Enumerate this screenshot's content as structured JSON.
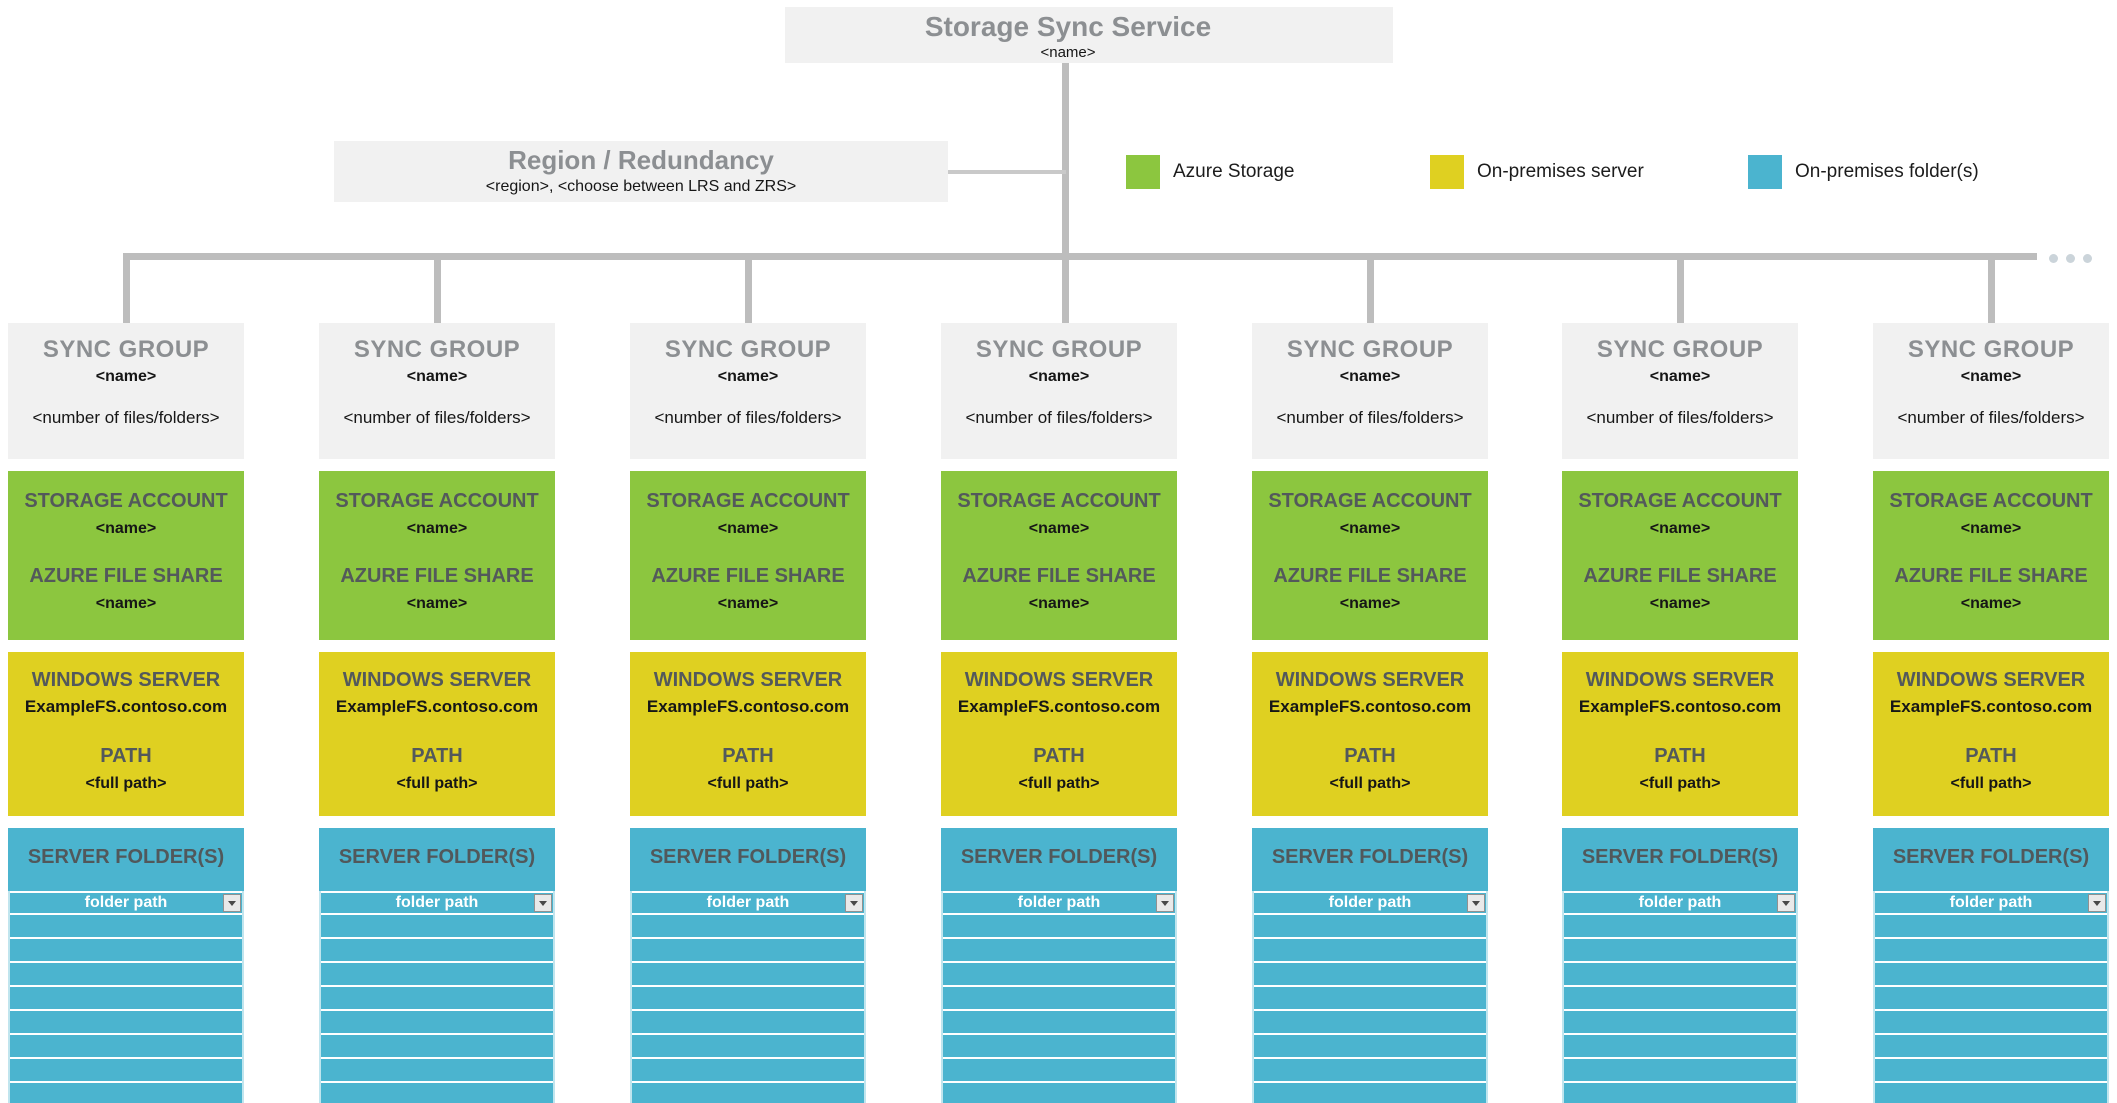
{
  "header": {
    "title": "Storage Sync Service",
    "name_placeholder": "<name>"
  },
  "region": {
    "title": "Region / Redundancy",
    "subtitle": "<region>, <choose between LRS and ZRS>"
  },
  "legend": {
    "items": [
      {
        "label": "Azure Storage",
        "color": "#8CC63F"
      },
      {
        "label": "On-premises server",
        "color": "#DFD021"
      },
      {
        "label": "On-premises folder(s)",
        "color": "#4BB4CF"
      }
    ]
  },
  "more_indicator": {
    "dots": 3
  },
  "columns": [
    {
      "sync_group": {
        "title": "SYNC GROUP",
        "name": "<name>",
        "count": "<number of files/folders>"
      },
      "storage": {
        "account_label": "STORAGE ACCOUNT",
        "account_name": "<name>",
        "share_label": "AZURE FILE SHARE",
        "share_name": "<name>"
      },
      "server": {
        "label": "WINDOWS SERVER",
        "host": "ExampleFS.contoso.com",
        "path_label": "PATH",
        "path_value": "<full path>"
      },
      "folders": {
        "label": "SERVER FOLDER(S)",
        "selected_value": "folder path",
        "empty_rows": 8
      }
    },
    {
      "sync_group": {
        "title": "SYNC GROUP",
        "name": "<name>",
        "count": "<number of files/folders>"
      },
      "storage": {
        "account_label": "STORAGE ACCOUNT",
        "account_name": "<name>",
        "share_label": "AZURE FILE SHARE",
        "share_name": "<name>"
      },
      "server": {
        "label": "WINDOWS SERVER",
        "host": "ExampleFS.contoso.com",
        "path_label": "PATH",
        "path_value": "<full path>"
      },
      "folders": {
        "label": "SERVER FOLDER(S)",
        "selected_value": "folder path",
        "empty_rows": 8
      }
    },
    {
      "sync_group": {
        "title": "SYNC GROUP",
        "name": "<name>",
        "count": "<number of files/folders>"
      },
      "storage": {
        "account_label": "STORAGE ACCOUNT",
        "account_name": "<name>",
        "share_label": "AZURE FILE SHARE",
        "share_name": "<name>"
      },
      "server": {
        "label": "WINDOWS SERVER",
        "host": "ExampleFS.contoso.com",
        "path_label": "PATH",
        "path_value": "<full path>"
      },
      "folders": {
        "label": "SERVER FOLDER(S)",
        "selected_value": "folder path",
        "empty_rows": 8
      }
    },
    {
      "sync_group": {
        "title": "SYNC GROUP",
        "name": "<name>",
        "count": "<number of files/folders>"
      },
      "storage": {
        "account_label": "STORAGE ACCOUNT",
        "account_name": "<name>",
        "share_label": "AZURE FILE SHARE",
        "share_name": "<name>"
      },
      "server": {
        "label": "WINDOWS SERVER",
        "host": "ExampleFS.contoso.com",
        "path_label": "PATH",
        "path_value": "<full path>"
      },
      "folders": {
        "label": "SERVER FOLDER(S)",
        "selected_value": "folder path",
        "empty_rows": 8
      }
    },
    {
      "sync_group": {
        "title": "SYNC GROUP",
        "name": "<name>",
        "count": "<number of files/folders>"
      },
      "storage": {
        "account_label": "STORAGE ACCOUNT",
        "account_name": "<name>",
        "share_label": "AZURE FILE SHARE",
        "share_name": "<name>"
      },
      "server": {
        "label": "WINDOWS SERVER",
        "host": "ExampleFS.contoso.com",
        "path_label": "PATH",
        "path_value": "<full path>"
      },
      "folders": {
        "label": "SERVER FOLDER(S)",
        "selected_value": "folder path",
        "empty_rows": 8
      }
    },
    {
      "sync_group": {
        "title": "SYNC GROUP",
        "name": "<name>",
        "count": "<number of files/folders>"
      },
      "storage": {
        "account_label": "STORAGE ACCOUNT",
        "account_name": "<name>",
        "share_label": "AZURE FILE SHARE",
        "share_name": "<name>"
      },
      "server": {
        "label": "WINDOWS SERVER",
        "host": "ExampleFS.contoso.com",
        "path_label": "PATH",
        "path_value": "<full path>"
      },
      "folders": {
        "label": "SERVER FOLDER(S)",
        "selected_value": "folder path",
        "empty_rows": 8
      }
    },
    {
      "sync_group": {
        "title": "SYNC GROUP",
        "name": "<name>",
        "count": "<number of files/folders>"
      },
      "storage": {
        "account_label": "STORAGE ACCOUNT",
        "account_name": "<name>",
        "share_label": "AZURE FILE SHARE",
        "share_name": "<name>"
      },
      "server": {
        "label": "WINDOWS SERVER",
        "host": "ExampleFS.contoso.com",
        "path_label": "PATH",
        "path_value": "<full path>"
      },
      "folders": {
        "label": "SERVER FOLDER(S)",
        "selected_value": "folder path",
        "empty_rows": 8
      }
    }
  ],
  "colors": {
    "azure_storage_green": "#8CC63F",
    "on_prem_server_yellow": "#DFD021",
    "on_prem_folders_teal": "#4BB4CF",
    "panel_gray": "#F1F1F1",
    "connector_gray": "#BDBDBD"
  }
}
